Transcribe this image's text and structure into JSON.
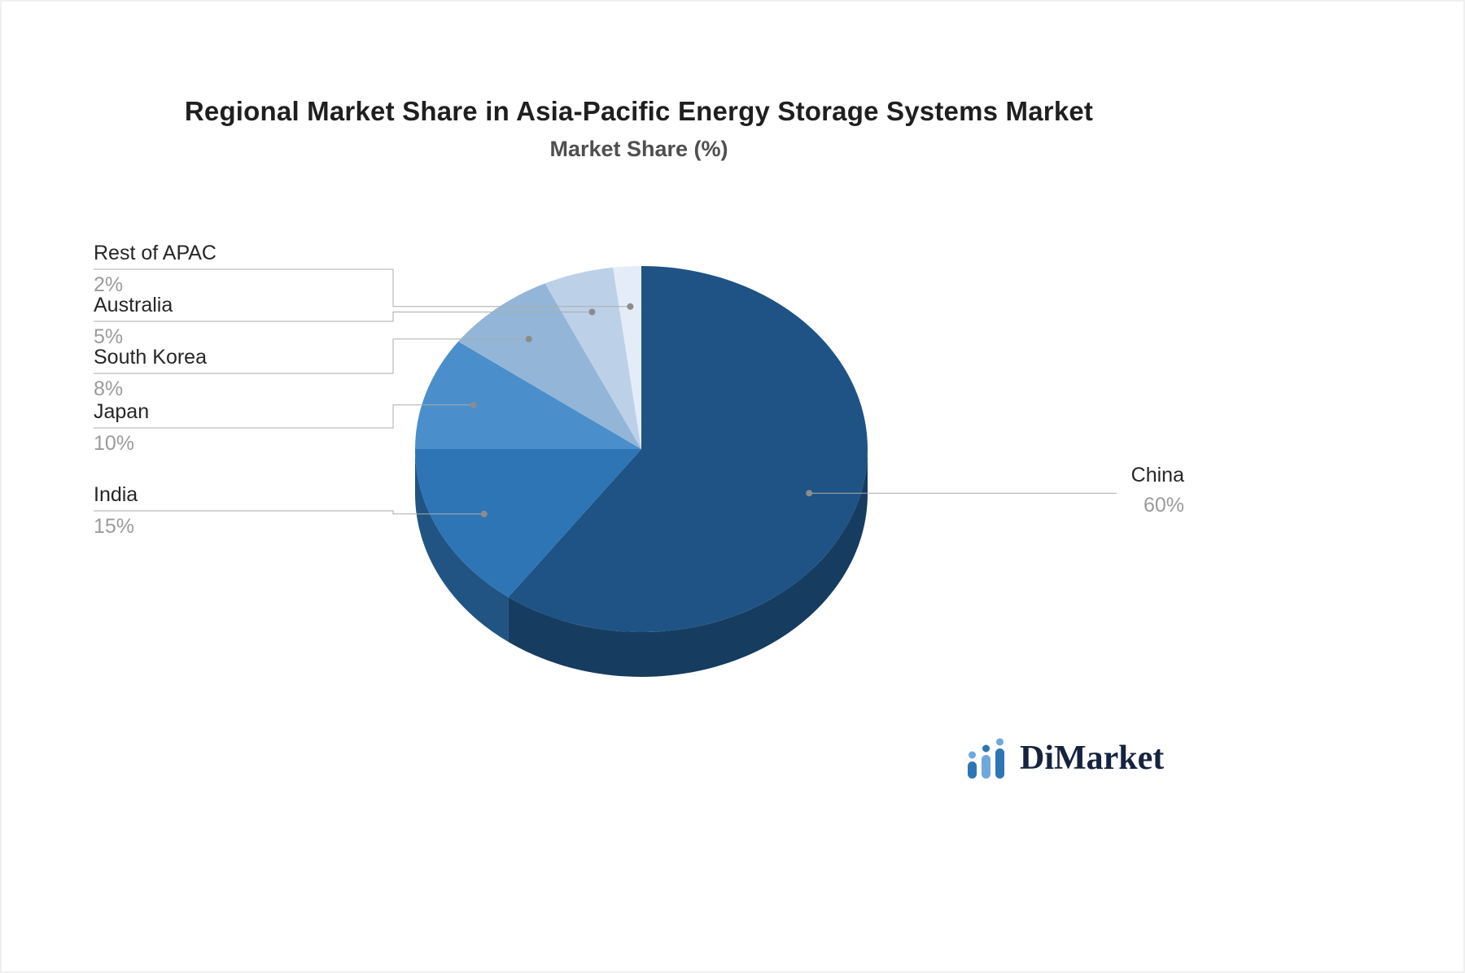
{
  "header": {
    "title": "Regional Market Share in Asia-Pacific Energy Storage Systems Market",
    "subtitle": "Market Share (%)"
  },
  "branding": {
    "logo_text": "DiMarket",
    "logo_icon": "bar-chart-logo-icon",
    "logo_text_color": "#16233F",
    "logo_icon_color": "#2E75B6",
    "logo_icon_accent_color": "#6FA8DC"
  },
  "chart_data": {
    "type": "pie",
    "style": "3d",
    "title": "Regional Market Share in Asia-Pacific Energy Storage Systems Market",
    "subtitle": "Market Share (%)",
    "unit": "%",
    "direction": "clockwise",
    "start_angle_deg": 0,
    "grid": false,
    "legend_position": "callout-labels",
    "slices": [
      {
        "label": "China",
        "value": 60,
        "pct_label": "60%",
        "color": "#1F5385"
      },
      {
        "label": "India",
        "value": 15,
        "pct_label": "15%",
        "color": "#2E75B6"
      },
      {
        "label": "Japan",
        "value": 10,
        "pct_label": "10%",
        "color": "#4A8FCB"
      },
      {
        "label": "South Korea",
        "value": 8,
        "pct_label": "8%",
        "color": "#93B5D8"
      },
      {
        "label": "Australia",
        "value": 5,
        "pct_label": "5%",
        "color": "#BCD1E8"
      },
      {
        "label": "Rest of APAC",
        "value": 2,
        "pct_label": "2%",
        "color": "#E4EDF7"
      }
    ]
  }
}
